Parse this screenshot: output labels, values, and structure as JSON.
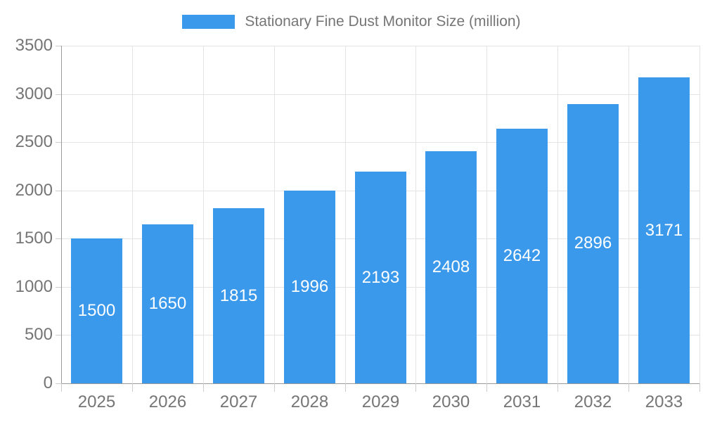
{
  "colors": {
    "bar": "#3B99EC",
    "grid": "#E4E4E4",
    "axis": "#9A9A9A",
    "tick": "#CCCCCC",
    "text": "#757575",
    "value_text": "#FFFFFF",
    "background": "#FFFFFF"
  },
  "chart_data": {
    "type": "bar",
    "title": "Stationary Fine Dust Monitor Size (million)",
    "legend": {
      "position": "top",
      "entries": [
        "Stationary Fine Dust Monitor Size (million)"
      ]
    },
    "categories": [
      "2025",
      "2026",
      "2027",
      "2028",
      "2029",
      "2030",
      "2031",
      "2032",
      "2033"
    ],
    "values": [
      1500,
      1650,
      1815,
      1996,
      2193,
      2408,
      2642,
      2896,
      3171
    ],
    "xlabel": "",
    "ylabel": "",
    "ylim": [
      0,
      3500
    ],
    "yticks": [
      0,
      500,
      1000,
      1500,
      2000,
      2500,
      3000,
      3500
    ],
    "grid": true,
    "value_labels": "inside-middle"
  }
}
